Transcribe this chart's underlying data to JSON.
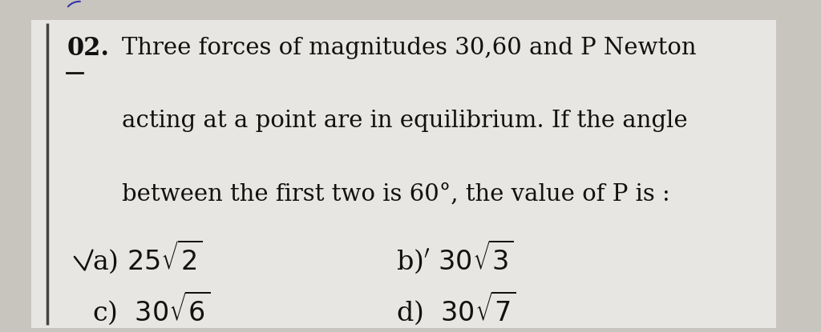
{
  "background_color": "#c8c4be",
  "card_color": "#e8e6e2",
  "text_color": "#111111",
  "left_bar_color": "#444444",
  "question_number": "02.",
  "line1": "Three forces of magnitudes 30,60 and P Newton",
  "line2": "acting at a point are in equilibrium. If the angle",
  "line3": "between the first two is 60°, the value of P is :",
  "font_size_q_num": 22,
  "font_size_body": 21,
  "font_size_options": 24
}
